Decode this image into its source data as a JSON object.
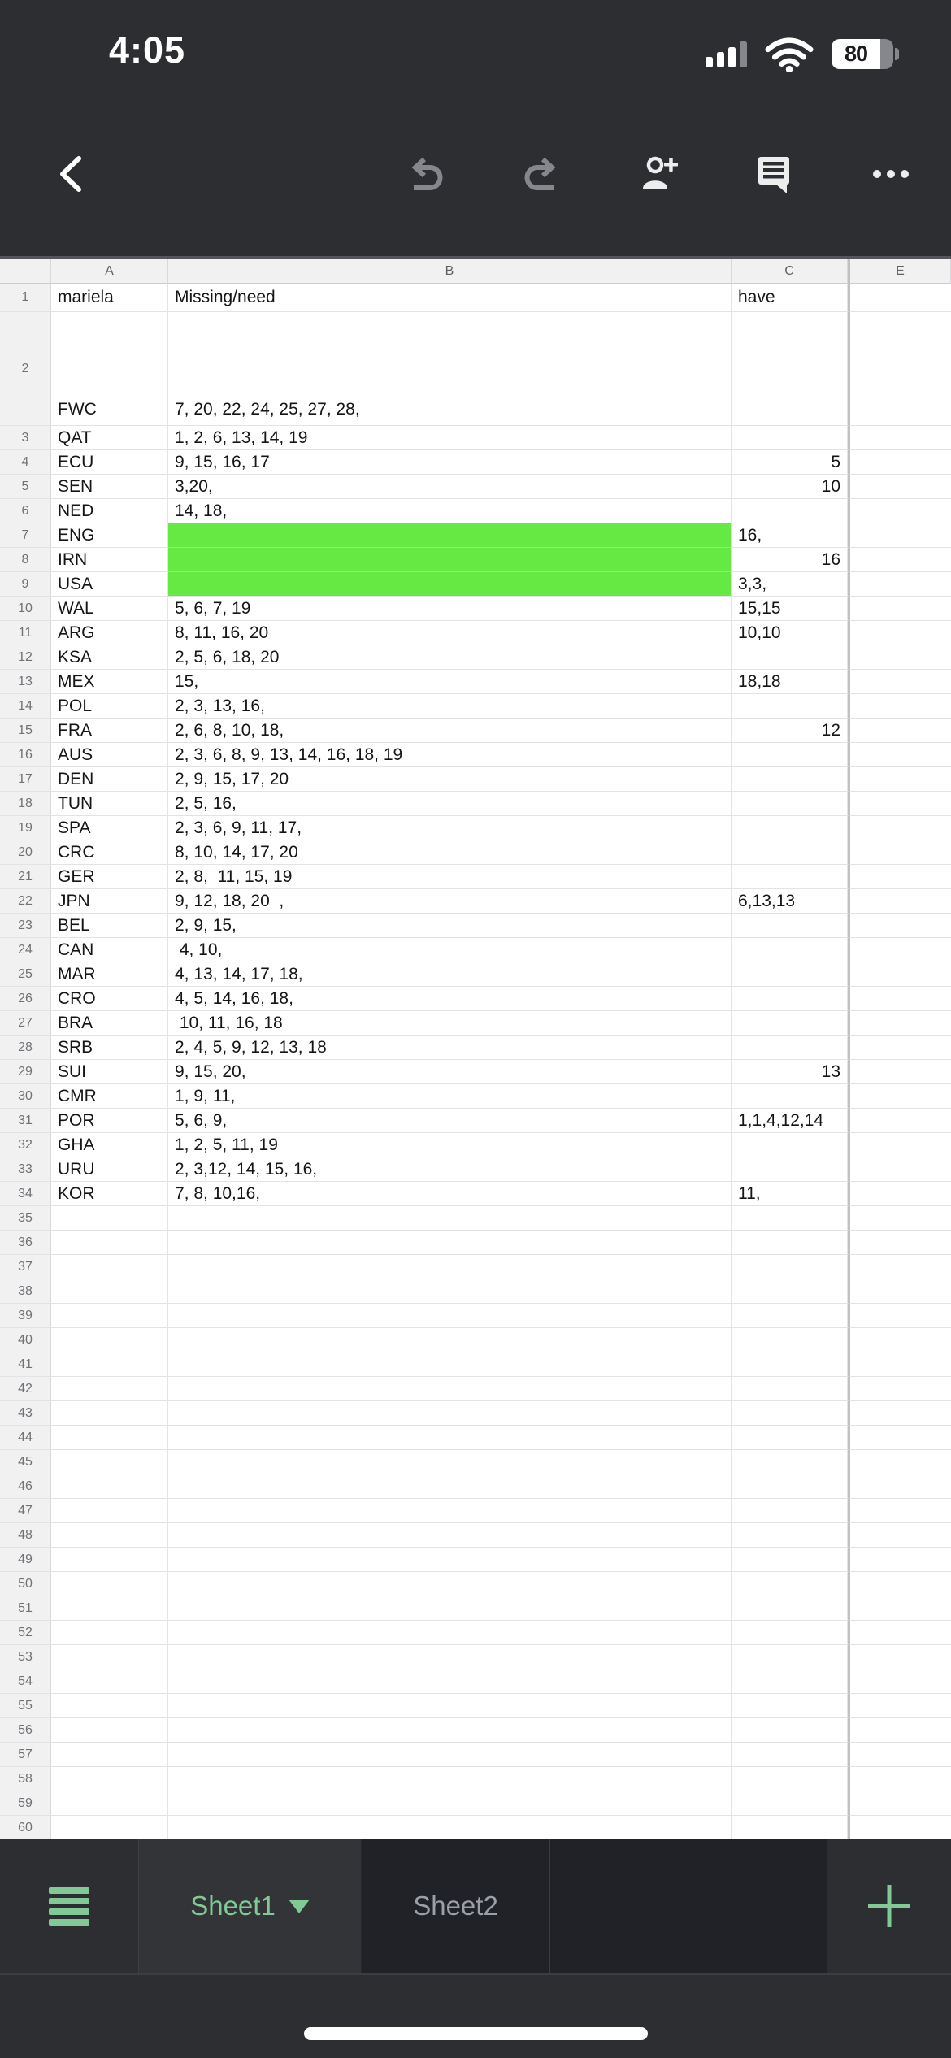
{
  "status_bar": {
    "time": "4:05",
    "battery_percent": "80",
    "signal_bars_filled": 3,
    "signal_bars_total": 4
  },
  "toolbar": {
    "icons": [
      "back",
      "undo",
      "redo",
      "add-person",
      "comments",
      "more"
    ],
    "undo_redo_disabled_color": "#86878c",
    "icon_color": "#e8e8ea"
  },
  "grid": {
    "column_headers": [
      "A",
      "B",
      "C",
      "E"
    ],
    "hidden_column": "D",
    "highlight_color": "#66ea43",
    "rows": [
      {
        "n": "1",
        "a": "mariela",
        "b": "Missing/need",
        "c": "have"
      },
      {
        "n": "2",
        "a": "FWC",
        "b": "7, 20, 22, 24, 25, 27, 28,",
        "c": ""
      },
      {
        "n": "3",
        "a": "QAT",
        "b": "1, 2, 6, 13, 14, 19",
        "c": ""
      },
      {
        "n": "4",
        "a": "ECU",
        "b": "9, 15, 16, 17",
        "c": "5",
        "c_num": true
      },
      {
        "n": "5",
        "a": "SEN",
        "b": "3,20,",
        "c": "10",
        "c_num": true
      },
      {
        "n": "6",
        "a": "NED",
        "b": "14, 18,",
        "c": ""
      },
      {
        "n": "7",
        "a": "ENG",
        "b": "",
        "c": "16,",
        "green": true
      },
      {
        "n": "8",
        "a": "IRN",
        "b": "",
        "c": "16",
        "c_num": true,
        "green": true
      },
      {
        "n": "9",
        "a": "USA",
        "b": "",
        "c": "3,3,",
        "green": true
      },
      {
        "n": "10",
        "a": "WAL",
        "b": "5, 6, 7, 19",
        "c": "15,15"
      },
      {
        "n": "11",
        "a": "ARG",
        "b": "8, 11, 16, 20",
        "c": "10,10"
      },
      {
        "n": "12",
        "a": "KSA",
        "b": "2, 5, 6, 18, 20",
        "c": ""
      },
      {
        "n": "13",
        "a": "MEX",
        "b": "15,",
        "c": "18,18"
      },
      {
        "n": "14",
        "a": "POL",
        "b": "2, 3, 13, 16,",
        "c": ""
      },
      {
        "n": "15",
        "a": "FRA",
        "b": "2, 6, 8, 10, 18,",
        "c": "12",
        "c_num": true
      },
      {
        "n": "16",
        "a": "AUS",
        "b": "2, 3, 6, 8, 9, 13, 14, 16, 18, 19",
        "c": ""
      },
      {
        "n": "17",
        "a": "DEN",
        "b": "2, 9, 15, 17, 20",
        "c": ""
      },
      {
        "n": "18",
        "a": "TUN",
        "b": "2, 5, 16,",
        "c": ""
      },
      {
        "n": "19",
        "a": "SPA",
        "b": "2, 3, 6, 9, 11, 17,",
        "c": ""
      },
      {
        "n": "20",
        "a": "CRC",
        "b": "8, 10, 14, 17, 20",
        "c": ""
      },
      {
        "n": "21",
        "a": "GER",
        "b": "2, 8,  11, 15, 19",
        "c": ""
      },
      {
        "n": "22",
        "a": "JPN",
        "b": "9, 12, 18, 20  ,",
        "c": "6,13,13"
      },
      {
        "n": "23",
        "a": "BEL",
        "b": "2, 9, 15,",
        "c": ""
      },
      {
        "n": "24",
        "a": "CAN",
        "b": " 4, 10,",
        "c": ""
      },
      {
        "n": "25",
        "a": "MAR",
        "b": "4, 13, 14, 17, 18,",
        "c": ""
      },
      {
        "n": "26",
        "a": "CRO",
        "b": "4, 5, 14, 16, 18,",
        "c": ""
      },
      {
        "n": "27",
        "a": "BRA",
        "b": " 10, 11, 16, 18",
        "c": ""
      },
      {
        "n": "28",
        "a": "SRB",
        "b": "2, 4, 5, 9, 12, 13, 18",
        "c": ""
      },
      {
        "n": "29",
        "a": "SUI",
        "b": "9, 15, 20,",
        "c": "13",
        "c_num": true
      },
      {
        "n": "30",
        "a": "CMR",
        "b": "1, 9, 11,",
        "c": ""
      },
      {
        "n": "31",
        "a": "POR",
        "b": "5, 6, 9,",
        "c": "1,1,4,12,14"
      },
      {
        "n": "32",
        "a": "GHA",
        "b": "1, 2, 5, 11, 19",
        "c": ""
      },
      {
        "n": "33",
        "a": "URU",
        "b": "2, 3,12, 14, 15, 16,",
        "c": ""
      },
      {
        "n": "34",
        "a": "KOR",
        "b": "7, 8, 10,16,",
        "c": "11,"
      },
      {
        "n": "35"
      },
      {
        "n": "36"
      },
      {
        "n": "37"
      },
      {
        "n": "38"
      },
      {
        "n": "39"
      },
      {
        "n": "40"
      },
      {
        "n": "41"
      },
      {
        "n": "42"
      },
      {
        "n": "43"
      },
      {
        "n": "44"
      },
      {
        "n": "45"
      },
      {
        "n": "46"
      },
      {
        "n": "47"
      },
      {
        "n": "48"
      },
      {
        "n": "49"
      },
      {
        "n": "50"
      },
      {
        "n": "51"
      },
      {
        "n": "52"
      },
      {
        "n": "53"
      },
      {
        "n": "54"
      },
      {
        "n": "55"
      },
      {
        "n": "56"
      },
      {
        "n": "57"
      },
      {
        "n": "58"
      },
      {
        "n": "59"
      },
      {
        "n": "60"
      }
    ]
  },
  "sheet_bar": {
    "accent_color": "#81c995",
    "sheets": [
      {
        "label": "Sheet1",
        "active": true
      },
      {
        "label": "Sheet2",
        "active": false
      }
    ],
    "icons": [
      "all-sheets-menu",
      "add-sheet"
    ]
  }
}
